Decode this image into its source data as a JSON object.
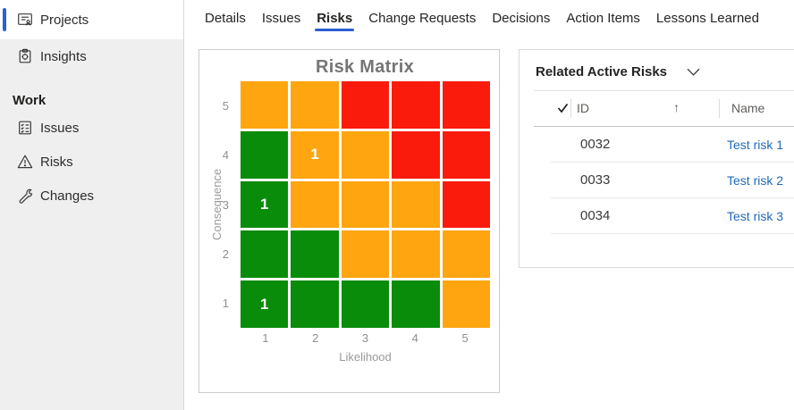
{
  "colors": {
    "accent_blue": "#2b5fd4",
    "link_blue": "#1f6ab8",
    "green": "#098c09",
    "orange": "#ffa50f",
    "red": "#fa1b0d"
  },
  "sidebar": {
    "main_items": [
      {
        "label": "Projects",
        "icon": "projects-icon",
        "selected": true
      },
      {
        "label": "Insights",
        "icon": "insights-icon",
        "selected": false
      }
    ],
    "section_label": "Work",
    "work_items": [
      {
        "label": "Issues",
        "icon": "issues-icon",
        "selected": false
      },
      {
        "label": "Risks",
        "icon": "risks-icon",
        "selected": false
      },
      {
        "label": "Changes",
        "icon": "changes-icon",
        "selected": false
      }
    ]
  },
  "tabs": {
    "active": "Risks",
    "items": [
      "Details",
      "Issues",
      "Risks",
      "Change Requests",
      "Decisions",
      "Action Items",
      "Lessons Learned"
    ]
  },
  "chart_data": {
    "type": "heatmap",
    "title": "Risk Matrix",
    "xlabel": "Likelihood",
    "ylabel": "Consequence",
    "x_ticks": [
      "1",
      "2",
      "3",
      "4",
      "5"
    ],
    "y_ticks": [
      "5",
      "4",
      "3",
      "2",
      "1"
    ],
    "palette": {
      "low": "#098c09",
      "medium": "#ffa50f",
      "high": "#fa1b0d"
    },
    "rows": [
      {
        "consequence": "5",
        "cells": [
          {
            "level": "medium",
            "count": ""
          },
          {
            "level": "medium",
            "count": ""
          },
          {
            "level": "high",
            "count": ""
          },
          {
            "level": "high",
            "count": ""
          },
          {
            "level": "high",
            "count": ""
          }
        ]
      },
      {
        "consequence": "4",
        "cells": [
          {
            "level": "low",
            "count": ""
          },
          {
            "level": "medium",
            "count": "1"
          },
          {
            "level": "medium",
            "count": ""
          },
          {
            "level": "high",
            "count": ""
          },
          {
            "level": "high",
            "count": ""
          }
        ]
      },
      {
        "consequence": "3",
        "cells": [
          {
            "level": "low",
            "count": "1"
          },
          {
            "level": "medium",
            "count": ""
          },
          {
            "level": "medium",
            "count": ""
          },
          {
            "level": "medium",
            "count": ""
          },
          {
            "level": "high",
            "count": ""
          }
        ]
      },
      {
        "consequence": "2",
        "cells": [
          {
            "level": "low",
            "count": ""
          },
          {
            "level": "low",
            "count": ""
          },
          {
            "level": "medium",
            "count": ""
          },
          {
            "level": "medium",
            "count": ""
          },
          {
            "level": "medium",
            "count": ""
          }
        ]
      },
      {
        "consequence": "1",
        "cells": [
          {
            "level": "low",
            "count": "1"
          },
          {
            "level": "low",
            "count": ""
          },
          {
            "level": "low",
            "count": ""
          },
          {
            "level": "low",
            "count": ""
          },
          {
            "level": "medium",
            "count": ""
          }
        ]
      }
    ]
  },
  "risk_panel": {
    "title": "Related Active Risks",
    "chevron_icon": "chevron-down-icon",
    "header": {
      "select_icon": "checkmark-icon",
      "id_label": "ID",
      "sort_icon": "sort-ascending-icon",
      "sort_glyph": "↑",
      "name_label": "Name"
    },
    "rows": [
      {
        "id": "0032",
        "name": "Test risk 1"
      },
      {
        "id": "0033",
        "name": "Test risk 2"
      },
      {
        "id": "0034",
        "name": "Test risk 3"
      }
    ]
  }
}
